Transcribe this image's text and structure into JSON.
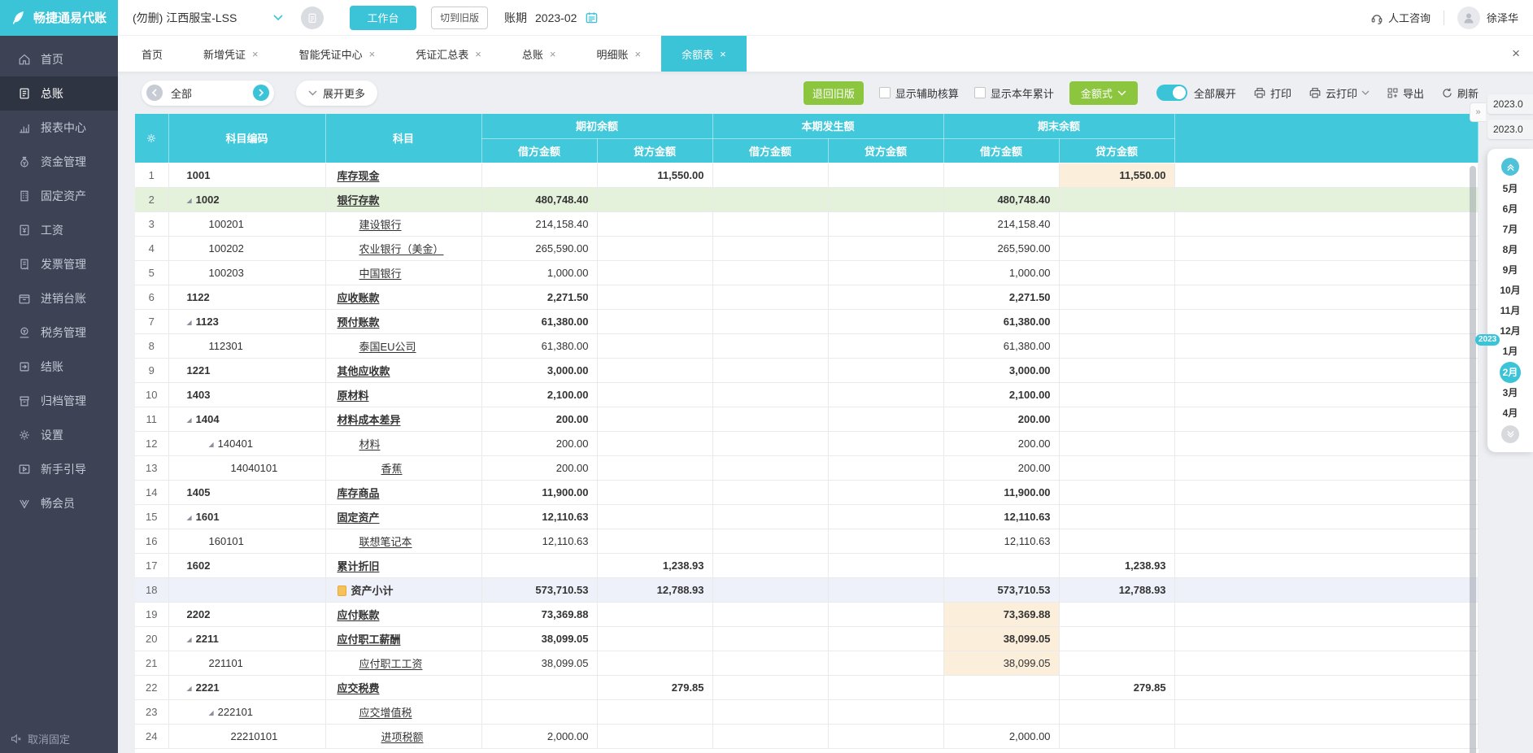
{
  "colors": {
    "teal": "#3bc3d8",
    "green": "#8cc63f",
    "sidebar": "#3d4355",
    "header_teal": "#41c8da",
    "beige_cell": "#fbeeda",
    "row_green": "#e4f2dc",
    "row_blue": "#eef1fa"
  },
  "header": {
    "logo": "畅捷通易代账",
    "company": "(勿删) 江西服宝-LSS",
    "workbench": "工作台",
    "switch_old": "切到旧版",
    "period_label": "账期",
    "period_value": "2023-02",
    "support": "人工咨询",
    "user": "徐泽华"
  },
  "tabs": [
    {
      "key": "home",
      "label": "首页",
      "closable": false,
      "active": false
    },
    {
      "key": "new-voucher",
      "label": "新增凭证",
      "closable": true,
      "active": false
    },
    {
      "key": "smart-voucher-center",
      "label": "智能凭证中心",
      "closable": true,
      "active": false
    },
    {
      "key": "voucher-summary",
      "label": "凭证汇总表",
      "closable": true,
      "active": false
    },
    {
      "key": "general-ledger",
      "label": "总账",
      "closable": true,
      "active": false
    },
    {
      "key": "detail-ledger",
      "label": "明细账",
      "closable": true,
      "active": false
    },
    {
      "key": "balance-sheet",
      "label": "余额表",
      "closable": true,
      "active": true
    }
  ],
  "sidebar": {
    "items": [
      {
        "key": "home",
        "label": "首页",
        "icon": "home-icon",
        "active": false
      },
      {
        "key": "general-ledger",
        "label": "总账",
        "icon": "ledger-icon",
        "active": true
      },
      {
        "key": "report-center",
        "label": "报表中心",
        "icon": "chart-icon",
        "active": false
      },
      {
        "key": "funds",
        "label": "资金管理",
        "icon": "moneybag-icon",
        "active": false
      },
      {
        "key": "fixed-assets",
        "label": "固定资产",
        "icon": "building-icon",
        "active": false
      },
      {
        "key": "salary",
        "label": "工资",
        "icon": "salary-icon",
        "active": false
      },
      {
        "key": "invoice",
        "label": "发票管理",
        "icon": "invoice-icon",
        "active": false
      },
      {
        "key": "purchase-sales",
        "label": "进销台账",
        "icon": "inventory-icon",
        "active": false
      },
      {
        "key": "tax",
        "label": "税务管理",
        "icon": "tax-icon",
        "active": false
      },
      {
        "key": "closing",
        "label": "结账",
        "icon": "closing-icon",
        "active": false
      },
      {
        "key": "archive",
        "label": "归档管理",
        "icon": "archive-icon",
        "active": false
      },
      {
        "key": "settings",
        "label": "设置",
        "icon": "gear-icon",
        "active": false
      },
      {
        "key": "guide",
        "label": "新手引导",
        "icon": "guide-icon",
        "active": false
      },
      {
        "key": "member",
        "label": "畅会员",
        "icon": "member-icon",
        "active": false
      }
    ],
    "unpin_label": "取消固定"
  },
  "toolbar": {
    "filter_all": "全部",
    "expand_more": "展开更多",
    "back_old": "退回旧版",
    "checkbox_aux": "显示辅助核算",
    "checkbox_ytd": "显示本年累计",
    "amount_style": "金额式",
    "toggle_label": "全部展开",
    "print": "打印",
    "cloud_print": "云打印",
    "export": "导出",
    "refresh": "刷新"
  },
  "table": {
    "header": {
      "col_code": "科目编码",
      "col_subject": "科目",
      "group_opening": "期初余额",
      "group_current": "本期发生额",
      "group_closing": "期末余额",
      "debit": "借方金额",
      "credit": "贷方金额"
    },
    "rows": [
      {
        "n": "1",
        "code": "1001",
        "level": 0,
        "tri": false,
        "bold": true,
        "name": "库存现金",
        "link": true,
        "v": [
          "",
          "11,550.00",
          "",
          "",
          "",
          "11,550.00"
        ],
        "hl": [
          5
        ]
      },
      {
        "n": "2",
        "code": "1002",
        "level": 0,
        "tri": true,
        "bold": true,
        "name": "银行存款",
        "link": true,
        "v": [
          "480,748.40",
          "",
          "",
          "",
          "480,748.40",
          ""
        ],
        "row": "green"
      },
      {
        "n": "3",
        "code": "100201",
        "level": 1,
        "tri": false,
        "bold": false,
        "name": "建设银行",
        "link": true,
        "v": [
          "214,158.40",
          "",
          "",
          "",
          "214,158.40",
          ""
        ]
      },
      {
        "n": "4",
        "code": "100202",
        "level": 1,
        "tri": false,
        "bold": false,
        "name": "农业银行（美金）",
        "link": true,
        "v": [
          "265,590.00",
          "",
          "",
          "",
          "265,590.00",
          ""
        ]
      },
      {
        "n": "5",
        "code": "100203",
        "level": 1,
        "tri": false,
        "bold": false,
        "name": "中国银行",
        "link": true,
        "v": [
          "1,000.00",
          "",
          "",
          "",
          "1,000.00",
          ""
        ]
      },
      {
        "n": "6",
        "code": "1122",
        "level": 0,
        "tri": false,
        "bold": true,
        "name": "应收账款",
        "link": true,
        "v": [
          "2,271.50",
          "",
          "",
          "",
          "2,271.50",
          ""
        ]
      },
      {
        "n": "7",
        "code": "1123",
        "level": 0,
        "tri": true,
        "bold": true,
        "name": "预付账款",
        "link": true,
        "v": [
          "61,380.00",
          "",
          "",
          "",
          "61,380.00",
          ""
        ]
      },
      {
        "n": "8",
        "code": "112301",
        "level": 1,
        "tri": false,
        "bold": false,
        "name": "泰国EU公司",
        "link": true,
        "v": [
          "61,380.00",
          "",
          "",
          "",
          "61,380.00",
          ""
        ]
      },
      {
        "n": "9",
        "code": "1221",
        "level": 0,
        "tri": false,
        "bold": true,
        "name": "其他应收款",
        "link": true,
        "v": [
          "3,000.00",
          "",
          "",
          "",
          "3,000.00",
          ""
        ]
      },
      {
        "n": "10",
        "code": "1403",
        "level": 0,
        "tri": false,
        "bold": true,
        "name": "原材料",
        "link": true,
        "v": [
          "2,100.00",
          "",
          "",
          "",
          "2,100.00",
          ""
        ]
      },
      {
        "n": "11",
        "code": "1404",
        "level": 0,
        "tri": true,
        "bold": true,
        "name": "材料成本差异",
        "link": true,
        "v": [
          "200.00",
          "",
          "",
          "",
          "200.00",
          ""
        ]
      },
      {
        "n": "12",
        "code": "140401",
        "level": 1,
        "tri": true,
        "bold": false,
        "name": "材料",
        "link": true,
        "v": [
          "200.00",
          "",
          "",
          "",
          "200.00",
          ""
        ]
      },
      {
        "n": "13",
        "code": "14040101",
        "level": 2,
        "tri": false,
        "bold": false,
        "name": "香蕉",
        "link": true,
        "v": [
          "200.00",
          "",
          "",
          "",
          "200.00",
          ""
        ]
      },
      {
        "n": "14",
        "code": "1405",
        "level": 0,
        "tri": false,
        "bold": true,
        "name": "库存商品",
        "link": true,
        "v": [
          "11,900.00",
          "",
          "",
          "",
          "11,900.00",
          ""
        ]
      },
      {
        "n": "15",
        "code": "1601",
        "level": 0,
        "tri": true,
        "bold": true,
        "name": "固定资产",
        "link": true,
        "v": [
          "12,110.63",
          "",
          "",
          "",
          "12,110.63",
          ""
        ]
      },
      {
        "n": "16",
        "code": "160101",
        "level": 1,
        "tri": false,
        "bold": false,
        "name": "联想笔记本",
        "link": true,
        "v": [
          "12,110.63",
          "",
          "",
          "",
          "12,110.63",
          ""
        ]
      },
      {
        "n": "17",
        "code": "1602",
        "level": 0,
        "tri": false,
        "bold": true,
        "name": "累计折旧",
        "link": true,
        "v": [
          "",
          "1,238.93",
          "",
          "",
          "",
          "1,238.93"
        ]
      },
      {
        "n": "18",
        "code": "",
        "level": 0,
        "tri": false,
        "bold": true,
        "name": "资产小计",
        "link": false,
        "icon": "notebook",
        "v": [
          "573,710.53",
          "12,788.93",
          "",
          "",
          "573,710.53",
          "12,788.93"
        ],
        "row": "blue"
      },
      {
        "n": "19",
        "code": "2202",
        "level": 0,
        "tri": false,
        "bold": true,
        "name": "应付账款",
        "link": true,
        "v": [
          "73,369.88",
          "",
          "",
          "",
          "73,369.88",
          ""
        ],
        "hl": [
          4
        ]
      },
      {
        "n": "20",
        "code": "2211",
        "level": 0,
        "tri": true,
        "bold": true,
        "name": "应付职工薪酬",
        "link": true,
        "v": [
          "38,099.05",
          "",
          "",
          "",
          "38,099.05",
          ""
        ],
        "hl": [
          4
        ]
      },
      {
        "n": "21",
        "code": "221101",
        "level": 1,
        "tri": false,
        "bold": false,
        "name": "应付职工工资",
        "link": true,
        "v": [
          "38,099.05",
          "",
          "",
          "",
          "38,099.05",
          ""
        ],
        "hl": [
          4
        ]
      },
      {
        "n": "22",
        "code": "2221",
        "level": 0,
        "tri": true,
        "bold": true,
        "name": "应交税费",
        "link": true,
        "v": [
          "",
          "279.85",
          "",
          "",
          "",
          "279.85"
        ]
      },
      {
        "n": "23",
        "code": "222101",
        "level": 1,
        "tri": true,
        "bold": false,
        "name": "应交增值税",
        "link": true,
        "v": [
          "",
          "",
          "",
          "",
          "",
          ""
        ]
      },
      {
        "n": "24",
        "code": "22210101",
        "level": 2,
        "tri": false,
        "bold": false,
        "name": "进项税额",
        "link": true,
        "v": [
          "2,000.00",
          "",
          "",
          "",
          "2,000.00",
          ""
        ]
      }
    ]
  },
  "right_panel": {
    "periods": [
      "2023.0",
      "2023.0"
    ],
    "months": [
      {
        "label": "5月"
      },
      {
        "label": "6月"
      },
      {
        "label": "7月"
      },
      {
        "label": "8月"
      },
      {
        "label": "9月"
      },
      {
        "label": "10月"
      },
      {
        "label": "11月"
      },
      {
        "label": "12月"
      },
      {
        "label": "1月",
        "badge": "2023"
      },
      {
        "label": "2月",
        "active": true
      },
      {
        "label": "3月"
      },
      {
        "label": "4月"
      }
    ]
  }
}
